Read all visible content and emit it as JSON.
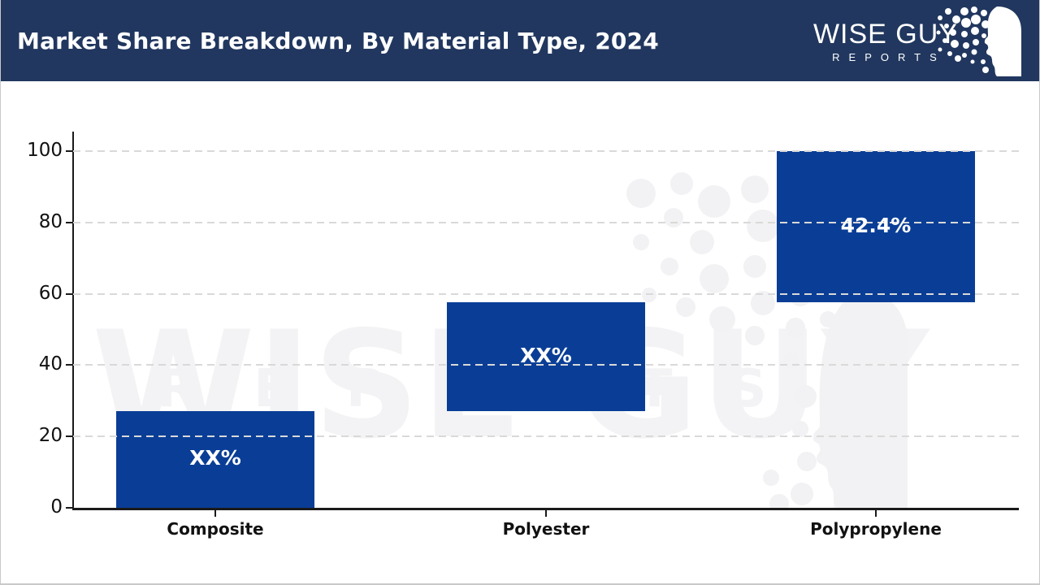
{
  "header": {
    "title": "Market Share Breakdown, By Material Type, 2024",
    "logo": {
      "line1": "WISE GUY",
      "line2": "REPORTS"
    }
  },
  "watermark": {
    "line1": "WISE GUY",
    "line2": "REPORTS"
  },
  "chart_data": {
    "type": "bar",
    "subtype": "floating-waterfall",
    "title": "Market Share Breakdown, By Material Type, 2024",
    "categories": [
      "Composite",
      "Polyester",
      "Polypropylene"
    ],
    "series": [
      {
        "name": "Market share (%)",
        "segments": [
          {
            "category": "Composite",
            "from": 0,
            "to": 27.2,
            "label": "XX%"
          },
          {
            "category": "Polyester",
            "from": 27.2,
            "to": 57.6,
            "label": "XX%"
          },
          {
            "category": "Polypropylene",
            "from": 57.6,
            "to": 100,
            "label": "42.4%"
          }
        ]
      }
    ],
    "ylim": [
      0,
      105
    ],
    "yticks": [
      0,
      20,
      40,
      60,
      80,
      100
    ],
    "xlabel": "",
    "ylabel": "",
    "grid": "horizontal-dashed",
    "legend": "none",
    "bar_color": "#0a3e96",
    "bar_label_color": "#ffffff",
    "axis_color": "#1a1a1a",
    "grid_color": "#d9d9d9"
  }
}
